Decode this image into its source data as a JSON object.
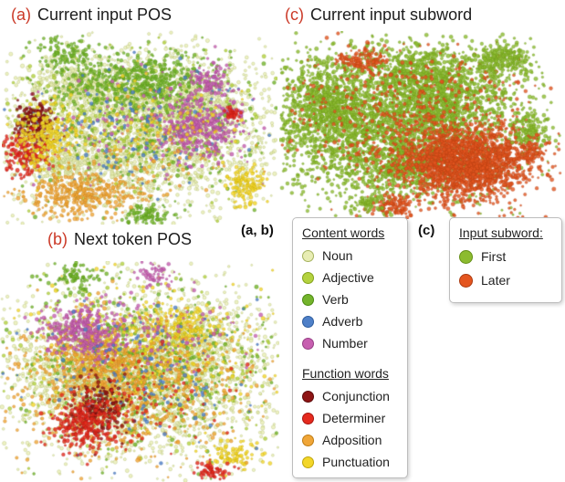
{
  "figure": {
    "panel_a": {
      "tag": "(a)",
      "title": "Current input POS"
    },
    "panel_b": {
      "tag": "(b)",
      "title": "Next token POS"
    },
    "panel_c": {
      "tag": "(c)",
      "title": "Current input subword"
    }
  },
  "legend_ab": {
    "tag": "(a, b)",
    "groups": [
      {
        "title": "Content words",
        "items": [
          {
            "label": "Noun",
            "category": "noun"
          },
          {
            "label": "Adjective",
            "category": "adjective"
          },
          {
            "label": "Verb",
            "category": "verb"
          },
          {
            "label": "Adverb",
            "category": "adverb"
          },
          {
            "label": "Number",
            "category": "number"
          }
        ]
      },
      {
        "title": "Function words",
        "items": [
          {
            "label": "Conjunction",
            "category": "conjunction"
          },
          {
            "label": "Determiner",
            "category": "determiner"
          },
          {
            "label": "Adposition",
            "category": "adposition"
          },
          {
            "label": "Punctuation",
            "category": "punctuation"
          }
        ]
      }
    ]
  },
  "legend_c": {
    "tag": "(c)",
    "title": "Input subword:",
    "items": [
      {
        "label": "First",
        "category": "first"
      },
      {
        "label": "Later",
        "category": "later"
      }
    ]
  },
  "ui": {
    "tag_color": "#cb3927",
    "text_color": "#1c1c1c",
    "legend_border": "#bdbdbd"
  },
  "palette": {
    "noun": {
      "fill": "#e8edb4",
      "border": "#a5b25e"
    },
    "adjective": {
      "fill": "#b4d23f",
      "border": "#84a21c"
    },
    "verb": {
      "fill": "#74b42c",
      "border": "#4c8a12"
    },
    "adverb": {
      "fill": "#4f80c8",
      "border": "#2e5d9e"
    },
    "number": {
      "fill": "#c75fb0",
      "border": "#963f85"
    },
    "conjunction": {
      "fill": "#8e1414",
      "border": "#5c0a0a"
    },
    "determiner": {
      "fill": "#e52a1e",
      "border": "#a81410"
    },
    "adposition": {
      "fill": "#f0a638",
      "border": "#bf7c14"
    },
    "punctuation": {
      "fill": "#f3d629",
      "border": "#bfa60d"
    },
    "first": {
      "fill": "#8cbb2f",
      "border": "#648f16"
    },
    "later": {
      "fill": "#e4551f",
      "border": "#ab3a10"
    }
  },
  "chart_data": [
    {
      "type": "scatter",
      "id": "a",
      "title": "Current input POS",
      "description": "t-SNE embedding of tokens colored by part-of-speech of current input",
      "seed": 101,
      "legend": [
        "Noun",
        "Adjective",
        "Verb",
        "Adverb",
        "Number",
        "Conjunction",
        "Determiner",
        "Adposition",
        "Punctuation"
      ],
      "clusters": [
        {
          "category": "noun",
          "cx": 0.5,
          "cy": 0.52,
          "sx": 0.26,
          "sy": 0.2,
          "n": 2600
        },
        {
          "category": "noun",
          "cx": 0.3,
          "cy": 0.28,
          "sx": 0.09,
          "sy": 0.07,
          "n": 300
        },
        {
          "category": "noun",
          "cx": 0.68,
          "cy": 0.36,
          "sx": 0.09,
          "sy": 0.07,
          "n": 260
        },
        {
          "category": "noun",
          "cx": 0.26,
          "cy": 0.7,
          "sx": 0.08,
          "sy": 0.06,
          "n": 240
        },
        {
          "category": "adjective",
          "cx": 0.48,
          "cy": 0.46,
          "sx": 0.24,
          "sy": 0.17,
          "n": 420
        },
        {
          "category": "verb",
          "cx": 0.5,
          "cy": 0.26,
          "sx": 0.16,
          "sy": 0.07,
          "n": 560
        },
        {
          "category": "verb",
          "cx": 0.5,
          "cy": 0.55,
          "sx": 0.25,
          "sy": 0.17,
          "n": 240
        },
        {
          "category": "verb",
          "cx": 0.23,
          "cy": 0.12,
          "sx": 0.05,
          "sy": 0.04,
          "n": 100
        },
        {
          "category": "verb",
          "cx": 0.53,
          "cy": 0.95,
          "sx": 0.045,
          "sy": 0.03,
          "n": 90
        },
        {
          "category": "adverb",
          "cx": 0.5,
          "cy": 0.5,
          "sx": 0.22,
          "sy": 0.15,
          "n": 160
        },
        {
          "category": "number",
          "cx": 0.71,
          "cy": 0.5,
          "sx": 0.075,
          "sy": 0.09,
          "n": 380
        },
        {
          "category": "number",
          "cx": 0.76,
          "cy": 0.26,
          "sx": 0.04,
          "sy": 0.035,
          "n": 90
        },
        {
          "category": "number",
          "cx": 0.5,
          "cy": 0.5,
          "sx": 0.2,
          "sy": 0.15,
          "n": 100
        },
        {
          "category": "conjunction",
          "cx": 0.125,
          "cy": 0.47,
          "sx": 0.035,
          "sy": 0.055,
          "n": 170
        },
        {
          "category": "determiner",
          "cx": 0.085,
          "cy": 0.64,
          "sx": 0.045,
          "sy": 0.055,
          "n": 180
        },
        {
          "category": "determiner",
          "cx": 0.84,
          "cy": 0.43,
          "sx": 0.013,
          "sy": 0.016,
          "n": 35
        },
        {
          "category": "adposition",
          "cx": 0.28,
          "cy": 0.85,
          "sx": 0.1,
          "sy": 0.055,
          "n": 380
        },
        {
          "category": "adposition",
          "cx": 0.5,
          "cy": 0.62,
          "sx": 0.2,
          "sy": 0.12,
          "n": 120
        },
        {
          "category": "punctuation",
          "cx": 0.165,
          "cy": 0.55,
          "sx": 0.05,
          "sy": 0.08,
          "n": 260
        },
        {
          "category": "punctuation",
          "cx": 0.895,
          "cy": 0.8,
          "sx": 0.035,
          "sy": 0.05,
          "n": 140
        },
        {
          "category": "punctuation",
          "cx": 0.5,
          "cy": 0.48,
          "sx": 0.2,
          "sy": 0.14,
          "n": 80
        }
      ]
    },
    {
      "type": "scatter",
      "id": "c",
      "title": "Current input subword",
      "description": "t-SNE embedding of tokens colored by whether current input is first or later subword",
      "seed": 202,
      "legend": [
        "First",
        "Later"
      ],
      "clusters": [
        {
          "category": "first",
          "cx": 0.38,
          "cy": 0.48,
          "sx": 0.25,
          "sy": 0.2,
          "n": 3200
        },
        {
          "category": "first",
          "cx": 0.18,
          "cy": 0.4,
          "sx": 0.07,
          "sy": 0.09,
          "n": 500
        },
        {
          "category": "first",
          "cx": 0.52,
          "cy": 0.22,
          "sx": 0.1,
          "sy": 0.06,
          "n": 450
        },
        {
          "category": "first",
          "cx": 0.42,
          "cy": 0.72,
          "sx": 0.12,
          "sy": 0.07,
          "n": 450
        },
        {
          "category": "first",
          "cx": 0.6,
          "cy": 0.4,
          "sx": 0.08,
          "sy": 0.08,
          "n": 350
        },
        {
          "category": "later",
          "cx": 0.48,
          "cy": 0.45,
          "sx": 0.22,
          "sy": 0.18,
          "n": 500
        },
        {
          "category": "later",
          "cx": 0.3,
          "cy": 0.16,
          "sx": 0.05,
          "sy": 0.035,
          "n": 130
        },
        {
          "category": "later",
          "cx": 0.655,
          "cy": 0.7,
          "sx": 0.115,
          "sy": 0.095,
          "n": 2000
        },
        {
          "category": "first",
          "cx": 0.79,
          "cy": 0.15,
          "sx": 0.05,
          "sy": 0.045,
          "n": 260
        },
        {
          "category": "first",
          "cx": 0.885,
          "cy": 0.54,
          "sx": 0.025,
          "sy": 0.045,
          "n": 110
        },
        {
          "category": "later",
          "cx": 0.885,
          "cy": 0.63,
          "sx": 0.02,
          "sy": 0.03,
          "n": 60
        },
        {
          "category": "later",
          "cx": 0.4,
          "cy": 0.93,
          "sx": 0.035,
          "sy": 0.028,
          "n": 110
        },
        {
          "category": "first",
          "cx": 0.31,
          "cy": 0.92,
          "sx": 0.03,
          "sy": 0.025,
          "n": 70
        }
      ]
    },
    {
      "type": "scatter",
      "id": "b",
      "title": "Next token POS",
      "description": "t-SNE embedding of tokens colored by part-of-speech of next token",
      "seed": 303,
      "legend": [
        "Noun",
        "Adjective",
        "Verb",
        "Adverb",
        "Number",
        "Conjunction",
        "Determiner",
        "Adposition",
        "Punctuation"
      ],
      "clusters": [
        {
          "category": "noun",
          "cx": 0.5,
          "cy": 0.52,
          "sx": 0.26,
          "sy": 0.2,
          "n": 2300
        },
        {
          "category": "noun",
          "cx": 0.7,
          "cy": 0.36,
          "sx": 0.1,
          "sy": 0.08,
          "n": 300
        },
        {
          "category": "noun",
          "cx": 0.3,
          "cy": 0.56,
          "sx": 0.08,
          "sy": 0.08,
          "n": 250
        },
        {
          "category": "adjective",
          "cx": 0.5,
          "cy": 0.5,
          "sx": 0.24,
          "sy": 0.18,
          "n": 350
        },
        {
          "category": "verb",
          "cx": 0.52,
          "cy": 0.46,
          "sx": 0.24,
          "sy": 0.18,
          "n": 450
        },
        {
          "category": "verb",
          "cx": 0.27,
          "cy": 0.07,
          "sx": 0.05,
          "sy": 0.03,
          "n": 90
        },
        {
          "category": "punctuation",
          "cx": 0.52,
          "cy": 0.42,
          "sx": 0.2,
          "sy": 0.15,
          "n": 430
        },
        {
          "category": "punctuation",
          "cx": 0.65,
          "cy": 0.3,
          "sx": 0.06,
          "sy": 0.05,
          "n": 150
        },
        {
          "category": "punctuation",
          "cx": 0.84,
          "cy": 0.88,
          "sx": 0.045,
          "sy": 0.03,
          "n": 90
        },
        {
          "category": "adposition",
          "cx": 0.46,
          "cy": 0.55,
          "sx": 0.21,
          "sy": 0.16,
          "n": 850
        },
        {
          "category": "adposition",
          "cx": 0.35,
          "cy": 0.45,
          "sx": 0.08,
          "sy": 0.07,
          "n": 250
        },
        {
          "category": "number",
          "cx": 0.3,
          "cy": 0.32,
          "sx": 0.07,
          "sy": 0.055,
          "n": 320
        },
        {
          "category": "number",
          "cx": 0.55,
          "cy": 0.3,
          "sx": 0.15,
          "sy": 0.1,
          "n": 110
        },
        {
          "category": "number",
          "cx": 0.55,
          "cy": 0.06,
          "sx": 0.03,
          "sy": 0.025,
          "n": 50
        },
        {
          "category": "adverb",
          "cx": 0.5,
          "cy": 0.5,
          "sx": 0.2,
          "sy": 0.15,
          "n": 140
        },
        {
          "category": "conjunction",
          "cx": 0.36,
          "cy": 0.66,
          "sx": 0.05,
          "sy": 0.06,
          "n": 170
        },
        {
          "category": "determiner",
          "cx": 0.3,
          "cy": 0.74,
          "sx": 0.06,
          "sy": 0.06,
          "n": 260
        },
        {
          "category": "determiner",
          "cx": 0.5,
          "cy": 0.62,
          "sx": 0.15,
          "sy": 0.12,
          "n": 100
        },
        {
          "category": "determiner",
          "cx": 0.76,
          "cy": 0.95,
          "sx": 0.03,
          "sy": 0.02,
          "n": 60
        }
      ]
    }
  ]
}
